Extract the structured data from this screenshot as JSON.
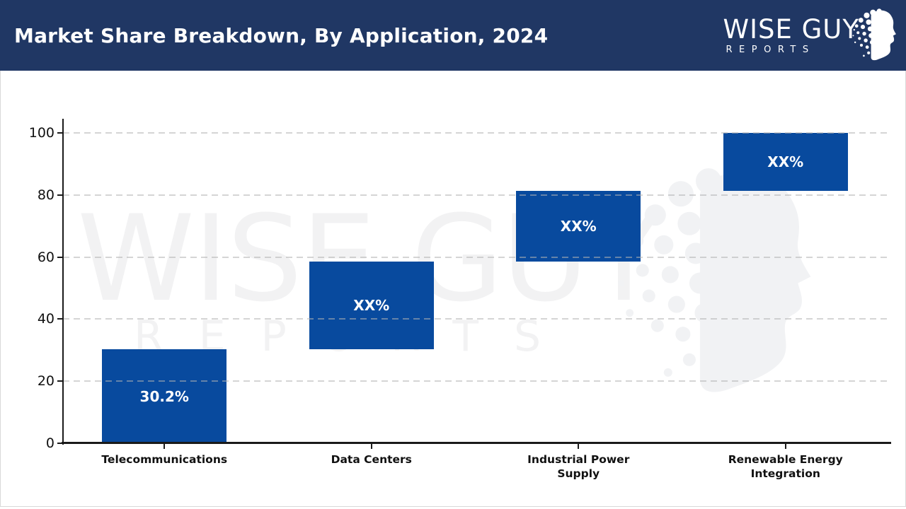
{
  "header": {
    "title": "Market Share Breakdown, By Application, 2024",
    "bg_color": "#203764",
    "logo": {
      "name": "WISE GUY",
      "sub": "REPORTS"
    }
  },
  "watermark": {
    "line1": "WISE GUY",
    "line2": "REPORTS"
  },
  "chart_data": {
    "type": "bar",
    "subtype": "waterfall",
    "title": "Market Share Breakdown, By Application, 2024",
    "categories": [
      "Telecommunications",
      "Data Centers",
      "Industrial Power Supply",
      "Renewable Energy Integration"
    ],
    "bars": [
      {
        "category": "Telecommunications",
        "start": 0,
        "end": 30.2,
        "label": "30.2%"
      },
      {
        "category": "Data Centers",
        "start": 30.2,
        "end": 58.6,
        "label": "XX%"
      },
      {
        "category": "Industrial Power Supply",
        "start": 58.6,
        "end": 81.4,
        "label": "XX%"
      },
      {
        "category": "Renewable Energy Integration",
        "start": 81.4,
        "end": 100,
        "label": "XX%"
      }
    ],
    "yticks": [
      0,
      20,
      40,
      60,
      80,
      100
    ],
    "ylim": [
      0,
      100
    ],
    "xlabel": "",
    "ylabel": "",
    "legend": "none",
    "grid": "dashed-horizontal",
    "colors": {
      "bar": "#084a9e",
      "bar_value_text": "#ffffff",
      "axis": "#1a1a1a",
      "tick_text": "#111111",
      "gridline": "#d8d8d8",
      "watermark": "#f2f2f3"
    }
  }
}
